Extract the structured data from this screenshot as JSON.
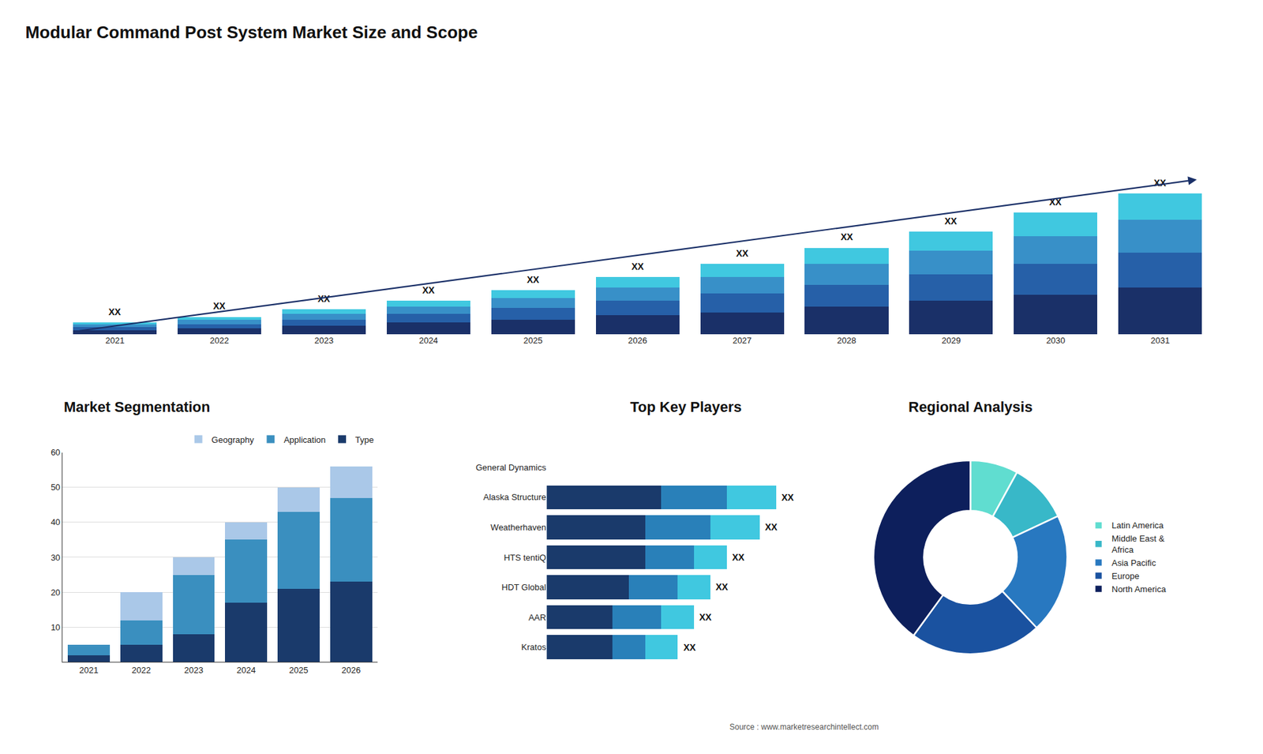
{
  "title": "Modular Command Post System Market Size and Scope",
  "annotations": [
    "Source : www.marketresearchintellect.com"
  ],
  "chart_data": [
    {
      "type": "bar",
      "stacked": true,
      "categories": [
        "2021",
        "2022",
        "2023",
        "2024",
        "2025",
        "2026",
        "2027",
        "2028",
        "2029",
        "2030",
        "2031"
      ],
      "series": [
        {
          "color": "#1a3068",
          "values": [
            3,
            4,
            6,
            8,
            10,
            13,
            15,
            19,
            23,
            27,
            32
          ]
        },
        {
          "color": "#2660a8",
          "values": [
            2,
            3,
            4,
            6,
            8,
            10,
            13,
            15,
            18,
            21,
            24
          ]
        },
        {
          "color": "#3890c8",
          "values": [
            2,
            3,
            4,
            5,
            7,
            9,
            11,
            14,
            16,
            19,
            22
          ]
        },
        {
          "color": "#40c8e0",
          "values": [
            1,
            2,
            3,
            4,
            5,
            7,
            9,
            11,
            13,
            16,
            18
          ]
        }
      ],
      "ylim": [
        0,
        129.6
      ],
      "tick_labels": "x",
      "annotations": [
        "XX",
        "XX",
        "XX",
        "XX",
        "XX",
        "XX",
        "XX",
        "XX",
        "XX",
        "XX",
        "XX"
      ]
    },
    {
      "type": "bar",
      "stacked": true,
      "title": "Market Segmentation",
      "categories": [
        "2021",
        "2022",
        "2023",
        "2024",
        "2025",
        "2026"
      ],
      "series": [
        {
          "name": "Type",
          "color": "#1a3a6b",
          "values": [
            2,
            5,
            8,
            17,
            21,
            23
          ]
        },
        {
          "name": "Application",
          "color": "#3a8fbf",
          "values": [
            3,
            7,
            17,
            18,
            22,
            24
          ]
        },
        {
          "name": "Geography",
          "color": "#aac8e8",
          "values": [
            0,
            8,
            5,
            5,
            7,
            9
          ]
        }
      ],
      "ylim": [
        0,
        60
      ],
      "yticks": [
        10,
        20,
        30,
        40,
        50,
        60
      ],
      "grid": true,
      "legend": "top"
    },
    {
      "type": "bar",
      "stacked": true,
      "orientation": "horizontal",
      "title": "Top Key Players",
      "categories": [
        "General Dynamics",
        "Alaska Structure",
        "Weatherhaven",
        "HTS tentiQ",
        "HDT Global",
        "AAR",
        "Kratos"
      ],
      "series": [
        {
          "color": "#1a3a6b",
          "values": [
            0,
            7,
            6,
            6,
            5,
            4,
            4
          ]
        },
        {
          "color": "#2980b9",
          "values": [
            0,
            4,
            4,
            3,
            3,
            3,
            2
          ]
        },
        {
          "color": "#40c8e0",
          "values": [
            0,
            3,
            3,
            2,
            2,
            2,
            2
          ]
        }
      ],
      "xlim": [
        0,
        17
      ],
      "tick_labels": "y",
      "annotations": [
        null,
        "XX",
        "XX",
        "XX",
        "XX",
        "XX",
        "XX"
      ]
    },
    {
      "type": "pie",
      "title": "Regional Analysis",
      "categories": [
        "Latin America",
        "Middle East &\nAfrica",
        "Asia Pacific",
        "Europe",
        "North America"
      ],
      "values": [
        8,
        10,
        20,
        22,
        40
      ],
      "colors": [
        "#60ddd0",
        "#38b8c8",
        "#2878c0",
        "#1a52a0",
        "#0d1f5c"
      ],
      "legend": "right"
    }
  ]
}
